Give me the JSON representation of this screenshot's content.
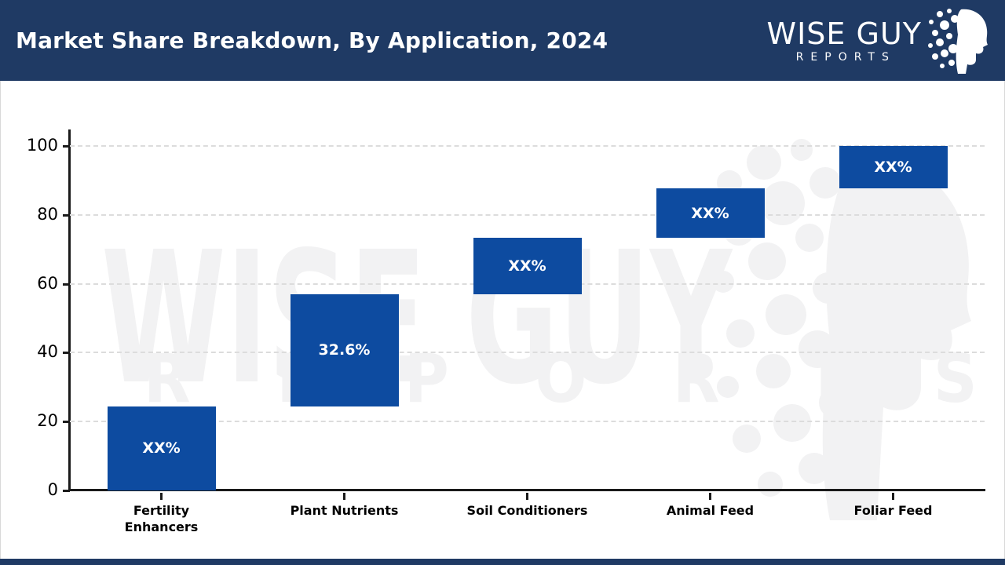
{
  "header": {
    "title": "Market Share Breakdown, By Application, 2024",
    "logo": {
      "brand_top": "WISE GUY",
      "brand_bottom": "REPORTS"
    }
  },
  "watermark": {
    "line1": "WISE GUY",
    "line2": "REPORTS"
  },
  "chart_data": {
    "type": "bar",
    "subtype": "waterfall",
    "title": "Market Share Breakdown, By Application, 2024",
    "categories": [
      "Fertility Enhancers",
      "Plant Nutrients",
      "Soil Conditioners",
      "Animal Feed",
      "Foliar Feed"
    ],
    "segments": [
      {
        "category": "Fertility Enhancers",
        "start": 0,
        "end": 24.4,
        "value": 24.4,
        "label": "XX%"
      },
      {
        "category": "Plant Nutrients",
        "start": 24.4,
        "end": 57.0,
        "value": 32.6,
        "label": "32.6%"
      },
      {
        "category": "Soil Conditioners",
        "start": 57.0,
        "end": 73.4,
        "value": 16.4,
        "label": "XX%"
      },
      {
        "category": "Animal Feed",
        "start": 73.4,
        "end": 87.6,
        "value": 14.2,
        "label": "XX%"
      },
      {
        "category": "Foliar Feed",
        "start": 87.6,
        "end": 100,
        "value": 12.4,
        "label": "XX%"
      }
    ],
    "xlabel": "",
    "ylabel": "",
    "ylim": [
      0,
      100
    ],
    "yticks": [
      0,
      20,
      40,
      60,
      80,
      100
    ],
    "grid": "horizontal-dashed",
    "legend": "none",
    "bar_color": "#0d4ba0",
    "bar_label_color": "#ffffff"
  },
  "colors": {
    "header_bg": "#1f3a64",
    "footer_bg": "#1f3a64",
    "bar": "#0d4ba0",
    "grid": "#dcdcdc",
    "axis": "#1a1a1a",
    "watermark": "#f2f2f3",
    "title_text": "#ffffff"
  }
}
